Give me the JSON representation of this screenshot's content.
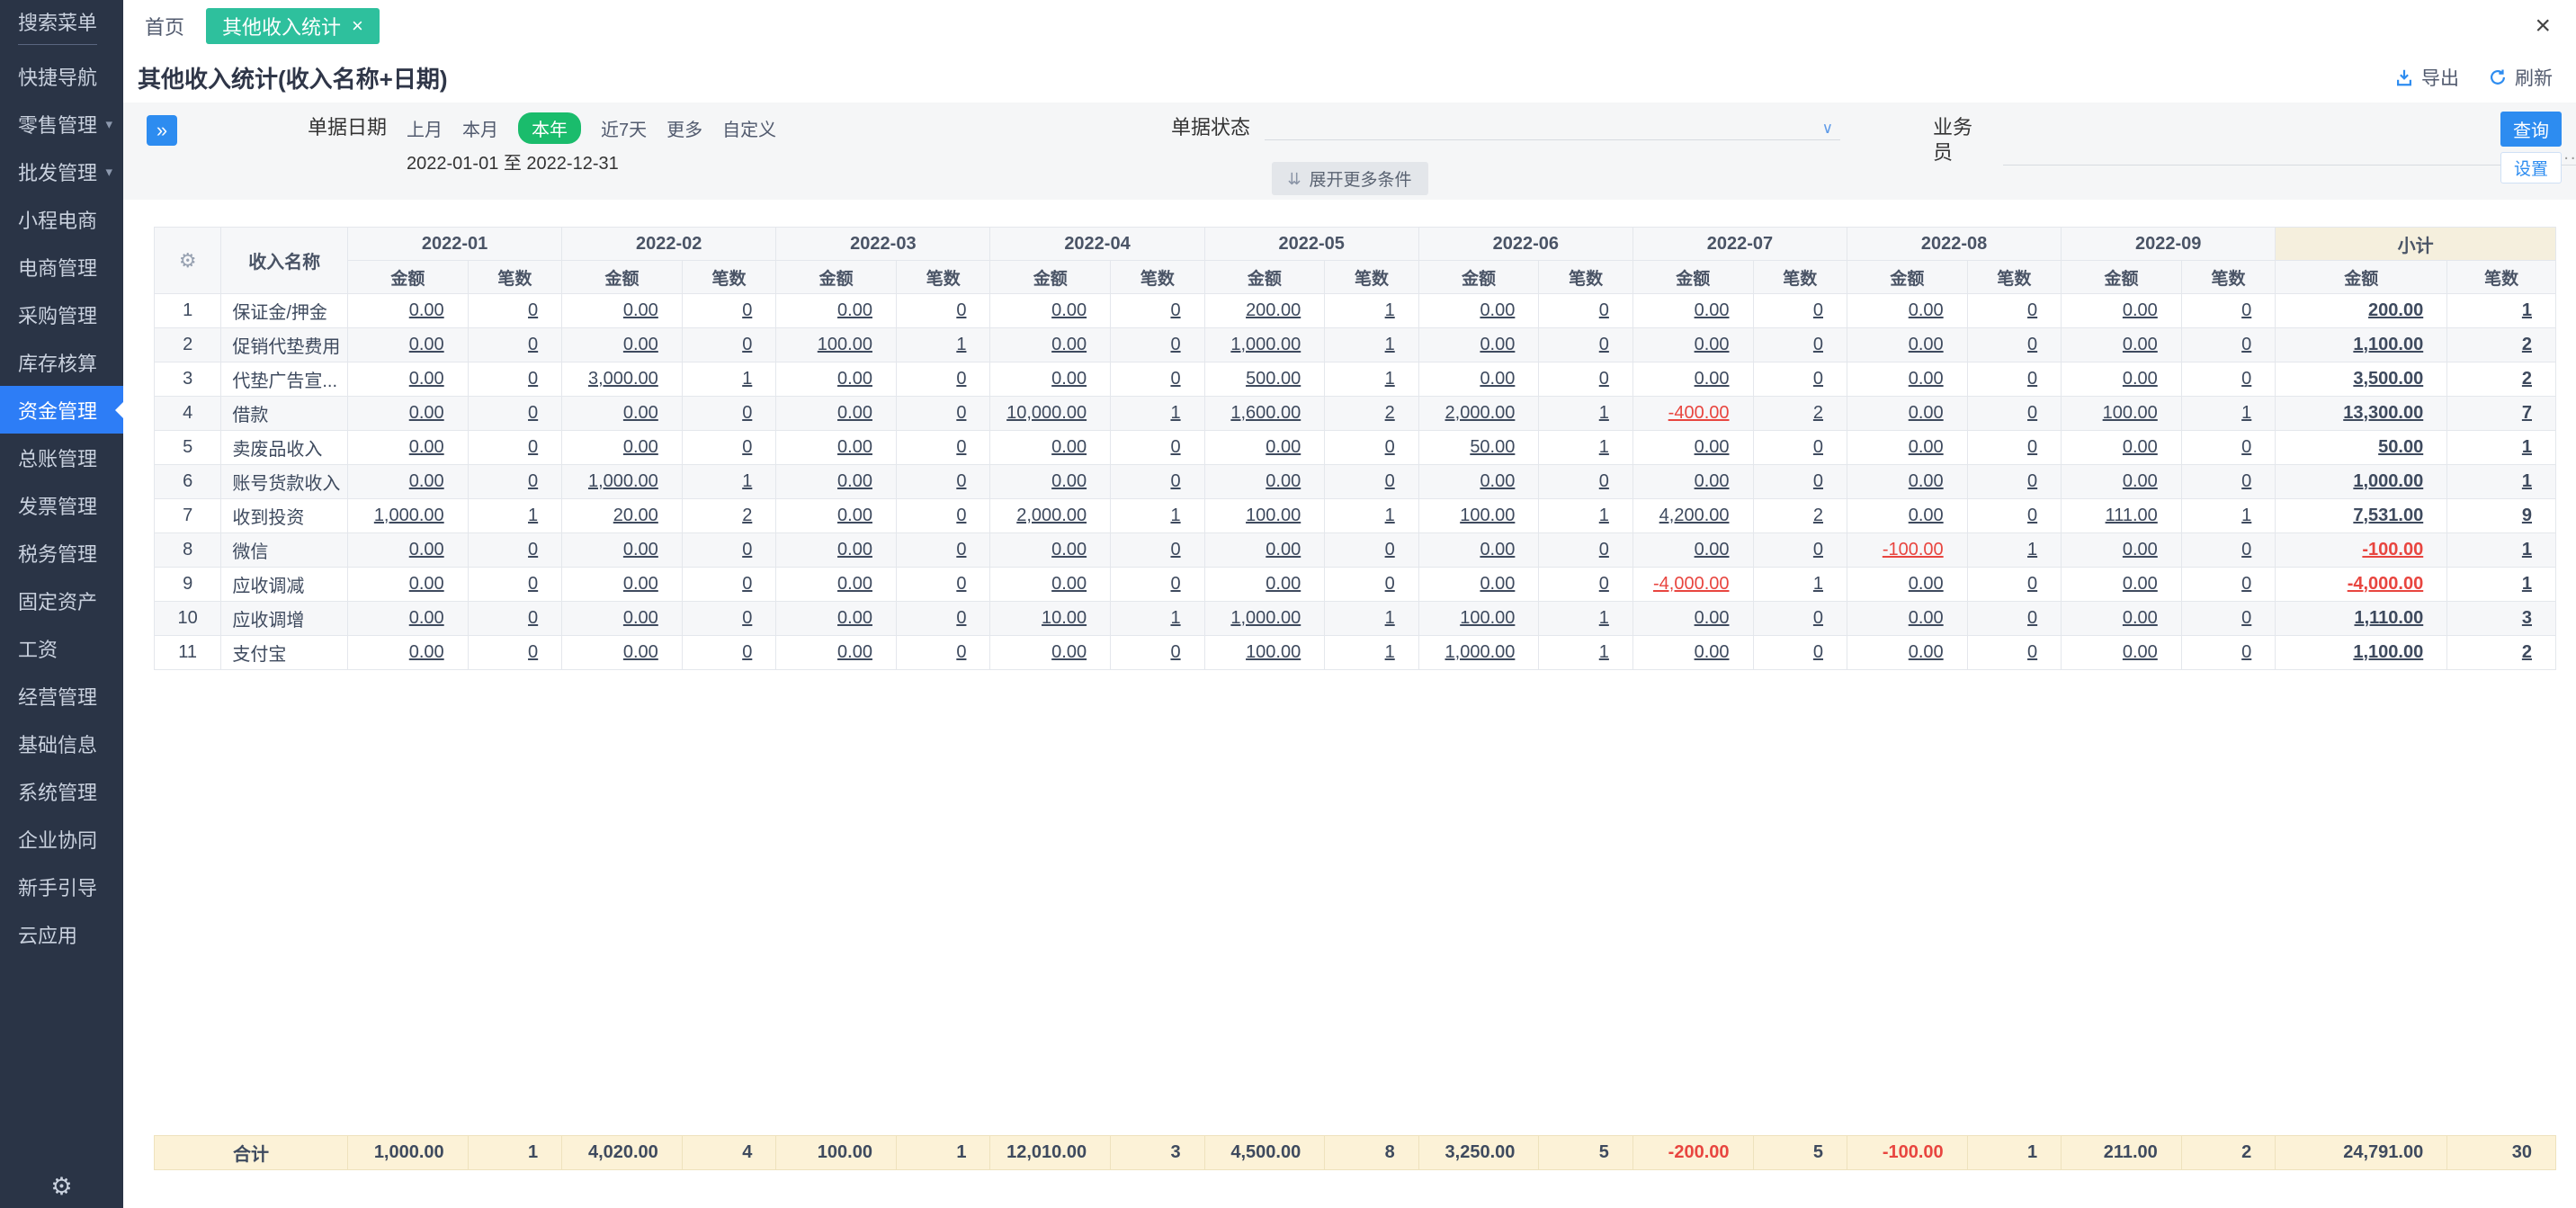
{
  "icons": {
    "close": "×",
    "gear": "⚙",
    "caret_down": "▾",
    "double_right": "»",
    "double_down": "⇊",
    "chevron_down": "∨",
    "more": "..."
  },
  "colors": {
    "sidebar_bg": "#2a3446",
    "sidebar_active_bg": "#2d7df6",
    "active_tab_green": "#2ec09d",
    "accent_blue": "#2d8cf0",
    "range_pill_green": "#1abc6c",
    "negative_red": "#e8453f",
    "totals_row_bg": "#fcf2d7"
  },
  "sidebar": {
    "items": [
      "搜索菜单",
      "快捷导航",
      "零售管理",
      "批发管理",
      "小程电商",
      "电商管理",
      "采购管理",
      "库存核算",
      "资金管理",
      "总账管理",
      "发票管理",
      "税务管理",
      "固定资产",
      "工资",
      "经营管理",
      "基础信息",
      "系统管理",
      "企业协同",
      "新手引导",
      "云应用"
    ],
    "active_item": "资金管理",
    "expandable_items": [
      "零售管理",
      "批发管理"
    ]
  },
  "tab_bar": {
    "tabs": [
      {
        "label": "首页",
        "active": false,
        "closable": false
      },
      {
        "label": "其他收入统计",
        "active": true,
        "closable": true
      }
    ]
  },
  "page": {
    "title": "其他收入统计(收入名称+日期)",
    "export_label": "导出",
    "refresh_label": "刷新"
  },
  "filters": {
    "date_label": "单据日期",
    "quick_ranges": [
      "上月",
      "本月",
      "本年",
      "近7天",
      "更多",
      "自定义"
    ],
    "active_range": "本年",
    "date_value": "2022-01-01 至 2022-12-31",
    "status_label": "单据状态",
    "salesman_label": "业务员",
    "search_label": "查询",
    "settings_label": "设置",
    "expand_more_label": "展开更多条件"
  },
  "table": {
    "name_header": "收入名称",
    "amount_header": "金额",
    "count_header": "笔数",
    "months": [
      "2022-01",
      "2022-02",
      "2022-03",
      "2022-04",
      "2022-05",
      "2022-06",
      "2022-07",
      "2022-08",
      "2022-09"
    ],
    "subtotal_header": "小计",
    "rows": [
      {
        "seq": 1,
        "name": "保证金/押金",
        "cells": [
          [
            "0.00",
            0
          ],
          [
            "0.00",
            0
          ],
          [
            "0.00",
            0
          ],
          [
            "0.00",
            0
          ],
          [
            "200.00",
            1
          ],
          [
            "0.00",
            0
          ],
          [
            "0.00",
            0
          ],
          [
            "0.00",
            0
          ],
          [
            "0.00",
            0
          ]
        ],
        "subtotal": [
          "200.00",
          1
        ]
      },
      {
        "seq": 2,
        "name": "促销代垫费用",
        "cells": [
          [
            "0.00",
            0
          ],
          [
            "0.00",
            0
          ],
          [
            "100.00",
            1
          ],
          [
            "0.00",
            0
          ],
          [
            "1,000.00",
            1
          ],
          [
            "0.00",
            0
          ],
          [
            "0.00",
            0
          ],
          [
            "0.00",
            0
          ],
          [
            "0.00",
            0
          ]
        ],
        "subtotal": [
          "1,100.00",
          2
        ]
      },
      {
        "seq": 3,
        "name": "代垫广告宣...",
        "cells": [
          [
            "0.00",
            0
          ],
          [
            "3,000.00",
            1
          ],
          [
            "0.00",
            0
          ],
          [
            "0.00",
            0
          ],
          [
            "500.00",
            1
          ],
          [
            "0.00",
            0
          ],
          [
            "0.00",
            0
          ],
          [
            "0.00",
            0
          ],
          [
            "0.00",
            0
          ]
        ],
        "subtotal": [
          "3,500.00",
          2
        ]
      },
      {
        "seq": 4,
        "name": "借款",
        "cells": [
          [
            "0.00",
            0
          ],
          [
            "0.00",
            0
          ],
          [
            "0.00",
            0
          ],
          [
            "10,000.00",
            1
          ],
          [
            "1,600.00",
            2
          ],
          [
            "2,000.00",
            1
          ],
          [
            "-400.00",
            2
          ],
          [
            "0.00",
            0
          ],
          [
            "100.00",
            1
          ]
        ],
        "subtotal": [
          "13,300.00",
          7
        ]
      },
      {
        "seq": 5,
        "name": "卖废品收入",
        "cells": [
          [
            "0.00",
            0
          ],
          [
            "0.00",
            0
          ],
          [
            "0.00",
            0
          ],
          [
            "0.00",
            0
          ],
          [
            "0.00",
            0
          ],
          [
            "50.00",
            1
          ],
          [
            "0.00",
            0
          ],
          [
            "0.00",
            0
          ],
          [
            "0.00",
            0
          ]
        ],
        "subtotal": [
          "50.00",
          1
        ]
      },
      {
        "seq": 6,
        "name": "账号货款收入",
        "cells": [
          [
            "0.00",
            0
          ],
          [
            "1,000.00",
            1
          ],
          [
            "0.00",
            0
          ],
          [
            "0.00",
            0
          ],
          [
            "0.00",
            0
          ],
          [
            "0.00",
            0
          ],
          [
            "0.00",
            0
          ],
          [
            "0.00",
            0
          ],
          [
            "0.00",
            0
          ]
        ],
        "subtotal": [
          "1,000.00",
          1
        ]
      },
      {
        "seq": 7,
        "name": "收到投资",
        "cells": [
          [
            "1,000.00",
            1
          ],
          [
            "20.00",
            2
          ],
          [
            "0.00",
            0
          ],
          [
            "2,000.00",
            1
          ],
          [
            "100.00",
            1
          ],
          [
            "100.00",
            1
          ],
          [
            "4,200.00",
            2
          ],
          [
            "0.00",
            0
          ],
          [
            "111.00",
            1
          ]
        ],
        "subtotal": [
          "7,531.00",
          9
        ]
      },
      {
        "seq": 8,
        "name": "微信",
        "cells": [
          [
            "0.00",
            0
          ],
          [
            "0.00",
            0
          ],
          [
            "0.00",
            0
          ],
          [
            "0.00",
            0
          ],
          [
            "0.00",
            0
          ],
          [
            "0.00",
            0
          ],
          [
            "0.00",
            0
          ],
          [
            "-100.00",
            1
          ],
          [
            "0.00",
            0
          ]
        ],
        "subtotal": [
          "-100.00",
          1
        ]
      },
      {
        "seq": 9,
        "name": "应收调减",
        "cells": [
          [
            "0.00",
            0
          ],
          [
            "0.00",
            0
          ],
          [
            "0.00",
            0
          ],
          [
            "0.00",
            0
          ],
          [
            "0.00",
            0
          ],
          [
            "0.00",
            0
          ],
          [
            "-4,000.00",
            1
          ],
          [
            "0.00",
            0
          ],
          [
            "0.00",
            0
          ]
        ],
        "subtotal": [
          "-4,000.00",
          1
        ]
      },
      {
        "seq": 10,
        "name": "应收调增",
        "cells": [
          [
            "0.00",
            0
          ],
          [
            "0.00",
            0
          ],
          [
            "0.00",
            0
          ],
          [
            "10.00",
            1
          ],
          [
            "1,000.00",
            1
          ],
          [
            "100.00",
            1
          ],
          [
            "0.00",
            0
          ],
          [
            "0.00",
            0
          ],
          [
            "0.00",
            0
          ]
        ],
        "subtotal": [
          "1,110.00",
          3
        ]
      },
      {
        "seq": 11,
        "name": "支付宝",
        "cells": [
          [
            "0.00",
            0
          ],
          [
            "0.00",
            0
          ],
          [
            "0.00",
            0
          ],
          [
            "0.00",
            0
          ],
          [
            "100.00",
            1
          ],
          [
            "1,000.00",
            1
          ],
          [
            "0.00",
            0
          ],
          [
            "0.00",
            0
          ],
          [
            "0.00",
            0
          ]
        ],
        "subtotal": [
          "1,100.00",
          2
        ]
      }
    ],
    "footer": {
      "label": "合计",
      "cells": [
        [
          "1,000.00",
          1
        ],
        [
          "4,020.00",
          4
        ],
        [
          "100.00",
          1
        ],
        [
          "12,010.00",
          3
        ],
        [
          "4,500.00",
          8
        ],
        [
          "3,250.00",
          5
        ],
        [
          "-200.00",
          5
        ],
        [
          "-100.00",
          1
        ],
        [
          "211.00",
          2
        ]
      ],
      "subtotal": [
        "24,791.00",
        30
      ]
    }
  }
}
